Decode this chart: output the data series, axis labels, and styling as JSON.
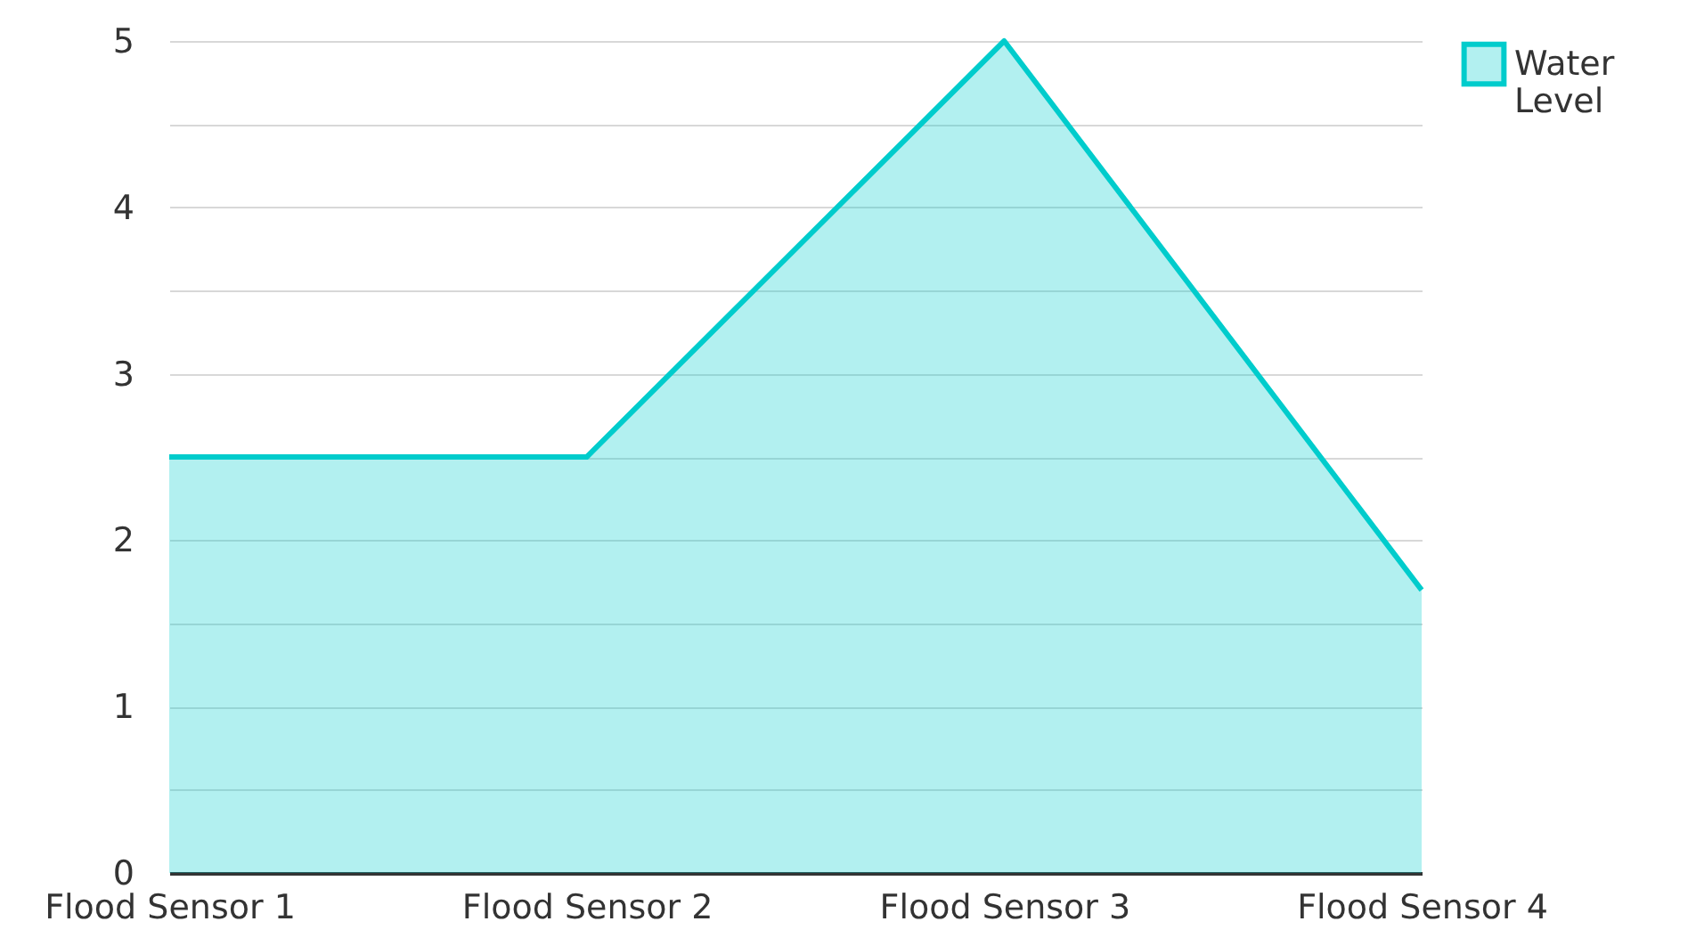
{
  "chart_data": {
    "type": "area",
    "categories": [
      "Flood Sensor 1",
      "Flood Sensor 2",
      "Flood Sensor 3",
      "Flood Sensor 4"
    ],
    "series": [
      {
        "name": "Water Level",
        "color": "#00cccc",
        "values": [
          2.5,
          2.5,
          5,
          1.7
        ]
      }
    ],
    "ylim": [
      0,
      5
    ],
    "yticks": [
      0,
      {
        "value": 0.5,
        "label": null
      },
      1,
      {
        "value": 1.5,
        "label": null
      },
      2,
      {
        "value": 2.5,
        "label": null
      },
      3,
      {
        "value": 3.5,
        "label": null
      },
      4,
      {
        "value": 4.5,
        "label": null
      },
      5
    ],
    "grid": "y",
    "legend": "top right"
  }
}
